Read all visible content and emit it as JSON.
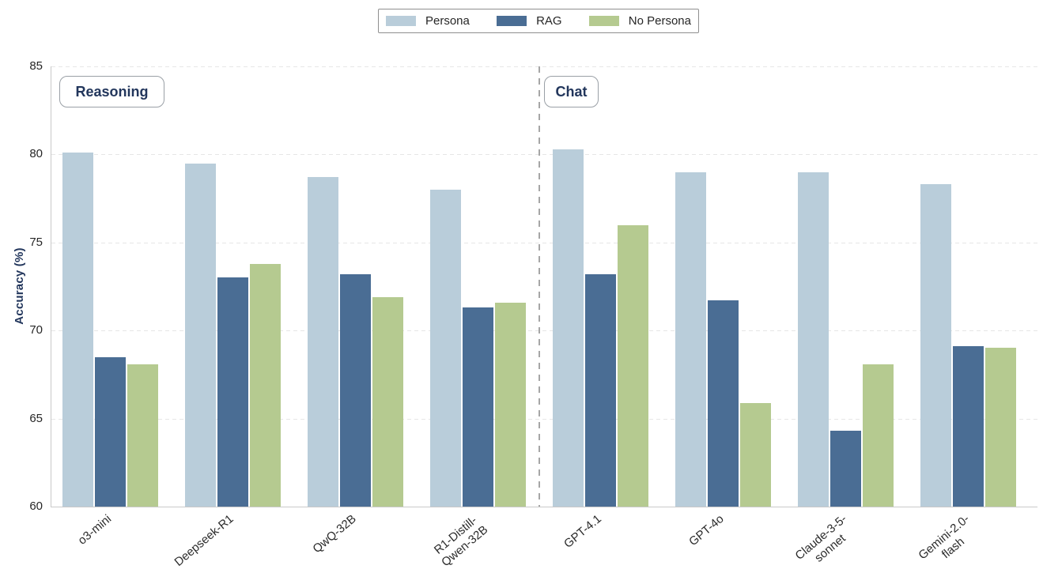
{
  "legend": {
    "items": [
      {
        "label": "Persona",
        "color": "#b9cdda"
      },
      {
        "label": "RAG",
        "color": "#4a6d94"
      },
      {
        "label": "No Persona",
        "color": "#b5ca90"
      }
    ]
  },
  "group_badges": {
    "reasoning": "Reasoning",
    "chat": "Chat"
  },
  "chart_data": {
    "type": "bar",
    "title": "",
    "xlabel": "",
    "ylabel": "Accuracy (%)",
    "ylim": [
      60,
      85
    ],
    "yticks": [
      60,
      65,
      70,
      75,
      80,
      85
    ],
    "grid": "horizontal dashed gridlines at each ytick",
    "legend_position": "top-center outside plot",
    "categories": [
      "o3-mini",
      "Deepseek-R1",
      "QwQ-32B",
      "R1-Distill-\nQwen-32B",
      "GPT-4.1",
      "GPT-4o",
      "Claude-3-5-\nsonnet",
      "Gemini-2.0-\nflash"
    ],
    "category_groups": [
      {
        "name": "Reasoning",
        "category_indices": [
          0,
          1,
          2,
          3
        ]
      },
      {
        "name": "Chat",
        "category_indices": [
          4,
          5,
          6,
          7
        ]
      }
    ],
    "separator_after_category_index": 3,
    "series": [
      {
        "name": "Persona",
        "color": "#b9cdda",
        "values": [
          80.1,
          79.5,
          78.7,
          78.0,
          80.3,
          79.0,
          79.0,
          78.3
        ]
      },
      {
        "name": "RAG",
        "color": "#4a6d94",
        "values": [
          68.5,
          73.0,
          73.2,
          71.3,
          73.2,
          71.7,
          64.3,
          69.1
        ]
      },
      {
        "name": "No Persona",
        "color": "#b5ca90",
        "values": [
          68.1,
          73.8,
          71.9,
          71.6,
          76.0,
          65.9,
          68.1,
          69.0
        ]
      }
    ]
  }
}
